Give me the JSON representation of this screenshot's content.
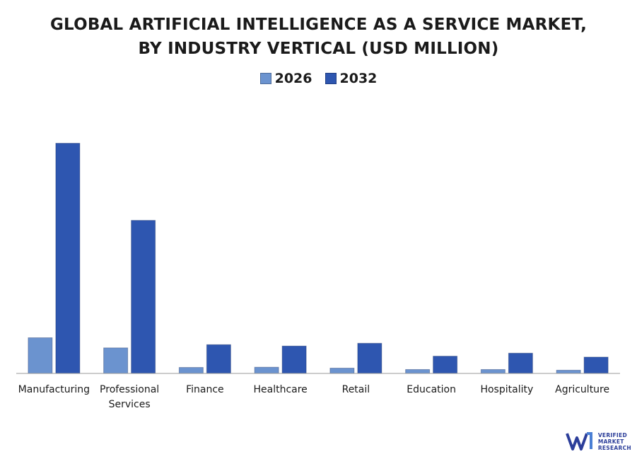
{
  "chart_data": {
    "type": "bar",
    "title": [
      "GLOBAL ARTIFICIAL INTELLIGENCE AS A SERVICE MARKET,",
      "BY INDUSTRY VERTICAL (USD MILLION)"
    ],
    "categories": [
      [
        "Manufacturing"
      ],
      [
        "Professional",
        "Services"
      ],
      [
        "Finance"
      ],
      [
        "Healthcare"
      ],
      [
        "Retail"
      ],
      [
        "Education"
      ],
      [
        "Hospitality"
      ],
      [
        "Agriculture"
      ]
    ],
    "series": [
      {
        "name": "2026",
        "color": "#6b93cf",
        "values": [
          155,
          111,
          26,
          27,
          23,
          17,
          17,
          14
        ]
      },
      {
        "name": "2032",
        "color": "#2e56b0",
        "values": [
          1000,
          665,
          125,
          119,
          131,
          75,
          88,
          71
        ]
      }
    ],
    "ylim": [
      0,
      1100
    ],
    "grid": false,
    "legend": "top-center"
  },
  "branding": {
    "logo_lines": [
      "VERIFIED",
      "MARKET",
      "RESEARCH"
    ],
    "logo_color": "#2c3e9a"
  }
}
